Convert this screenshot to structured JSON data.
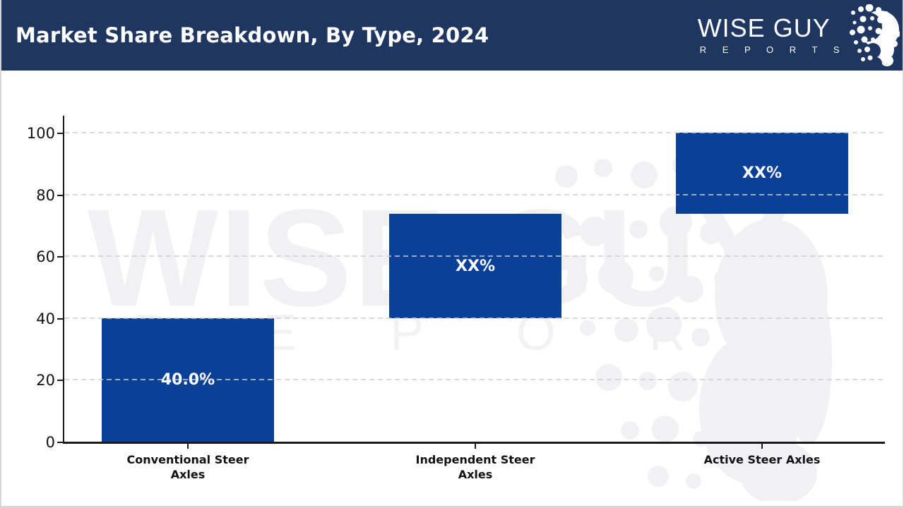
{
  "header": {
    "title": "Market Share Breakdown, By Type, 2024",
    "background_color": "#1f3660",
    "logo": {
      "line1": "WISE GUY",
      "line2": "R E P O R T S",
      "face_icon": "dotted-head-profile"
    }
  },
  "watermark": {
    "line1": "WISE GUY",
    "line2": "R E P O R T S",
    "color": "#f1f1f4"
  },
  "chart_data": {
    "type": "bar",
    "subtype": "floating-segment-bars",
    "title": "Market Share Breakdown, By Type, 2024",
    "categories": [
      "Conventional Steer\nAxles",
      "Independent Steer\nAxles",
      "Active Steer Axles"
    ],
    "segments": [
      {
        "start": 0,
        "end": 40,
        "label": "40.0%"
      },
      {
        "start": 40,
        "end": 73.8,
        "label": "XX%"
      },
      {
        "start": 73.8,
        "end": 100,
        "label": "XX%"
      }
    ],
    "yticks": [
      0,
      20,
      40,
      60,
      80,
      100
    ],
    "ylim": [
      0,
      105.5
    ],
    "xlabel": "",
    "ylabel": "",
    "grid": "horizontal-dashed",
    "legend": "none",
    "bar_color": "#0a4196",
    "bar_label_color": "#ffffff",
    "axis_color": "#1a1a1a"
  }
}
